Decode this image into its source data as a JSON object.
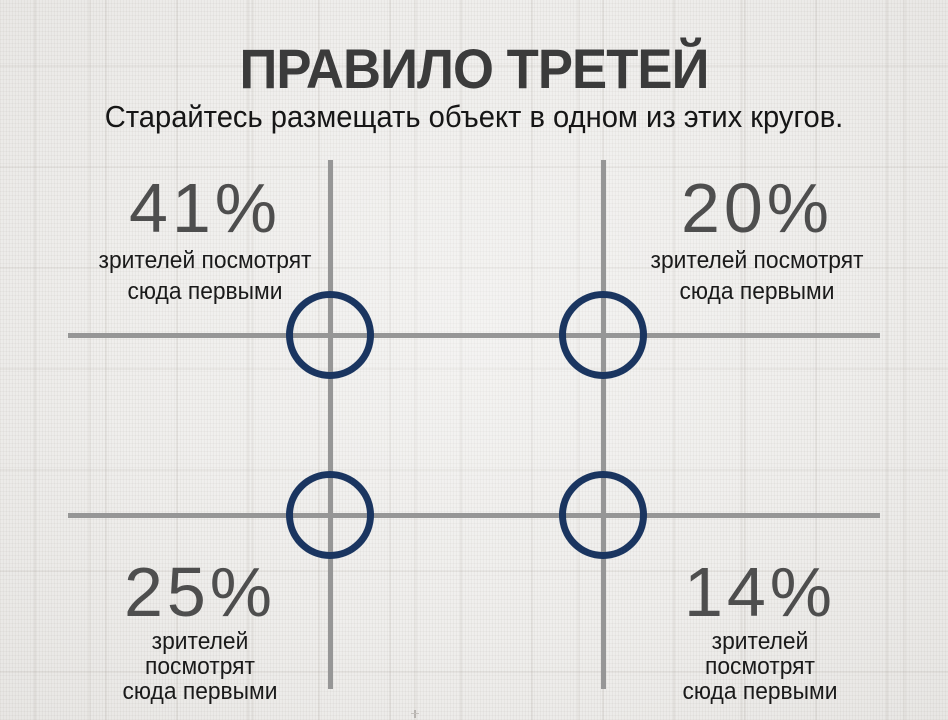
{
  "title": "ПРАВИЛО ТРЕТЕЙ",
  "subtitle": "Старайтесь размещать объект в одном из этих кругов.",
  "quadrants": [
    {
      "position": "top-left",
      "percent": "41%",
      "caption_lines": [
        "зрителей посмотрят",
        "сюда первыми"
      ]
    },
    {
      "position": "top-right",
      "percent": "20%",
      "caption_lines": [
        "зрителей посмотрят",
        "сюда первыми"
      ]
    },
    {
      "position": "bottom-left",
      "percent": "25%",
      "caption_lines": [
        "зрителей",
        "посмотрят",
        "сюда первыми"
      ]
    },
    {
      "position": "bottom-right",
      "percent": "14%",
      "caption_lines": [
        "зрителей",
        "посмотрят",
        "сюда первыми"
      ]
    }
  ],
  "colors": {
    "background": "#efeeec",
    "grid_line": "#969696",
    "circle_stroke": "#1a3560",
    "title_text": "#3b3b3b",
    "percent_text": "#4e4e4e",
    "caption_text": "#1a1a1a"
  }
}
